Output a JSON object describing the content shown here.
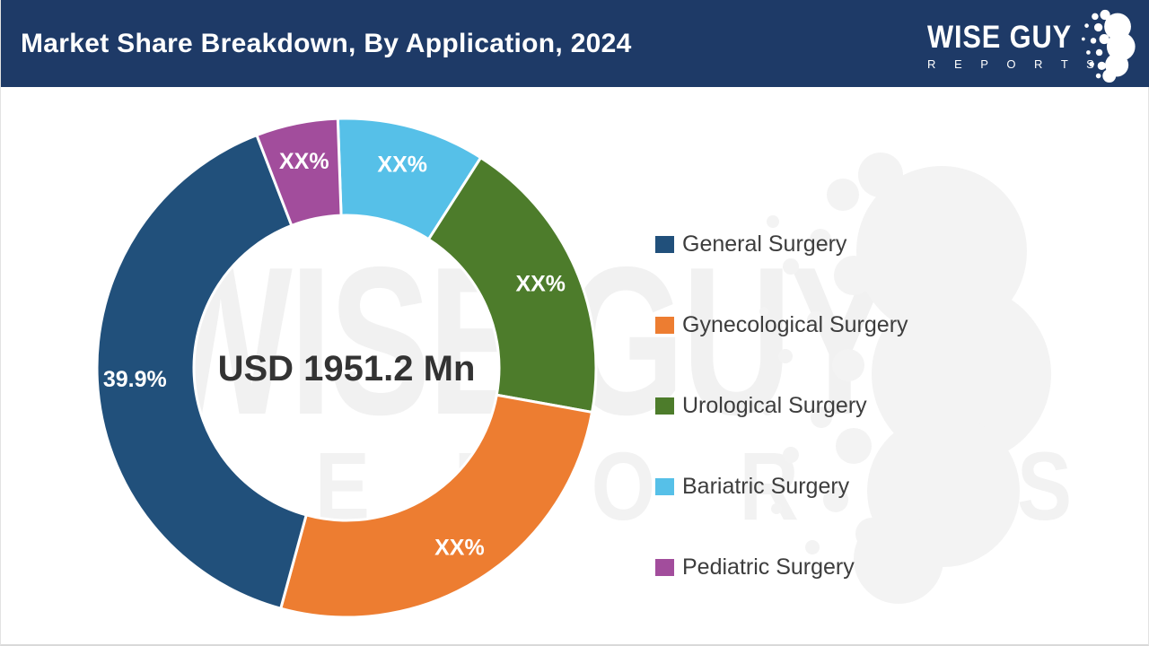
{
  "header": {
    "title": "Market Share Breakdown, By Application, 2024",
    "bg_color": "#1e3a67",
    "logo": {
      "line1": "WISE GUY",
      "line2": "R E P O R T S",
      "face_icon": "dotted-head-profile"
    }
  },
  "watermark": {
    "line1": "WISE GUY",
    "line2": "R E P O R T S",
    "face_icon": "dotted-head-profile",
    "color": "#f1f1f1"
  },
  "chart_data": {
    "type": "pie",
    "subtype": "donut",
    "title": "Market Share Breakdown, By Application, 2024",
    "center_label": "USD 1951.2 Mn",
    "unit": "percent of market share",
    "start_angle_deg": -2,
    "clockwise": true,
    "draw_order": [
      "Bariatric Surgery",
      "Urological Surgery",
      "Gynecological Surgery",
      "General Surgery",
      "Pediatric Surgery"
    ],
    "slices": [
      {
        "name": "General Surgery",
        "value": 39.9,
        "label": "39.9%",
        "color": "#21507b"
      },
      {
        "name": "Gynecological Surgery",
        "value": 26.4,
        "label": "XX%",
        "color": "#ed7d31"
      },
      {
        "name": "Urological Surgery",
        "value": 18.8,
        "label": "XX%",
        "color": "#4d7c2b"
      },
      {
        "name": "Bariatric Surgery",
        "value": 9.6,
        "label": "XX%",
        "color": "#56c0e8"
      },
      {
        "name": "Pediatric Surgery",
        "value": 5.3,
        "label": "XX%",
        "color": "#a24d9c"
      }
    ],
    "legend_position": "right",
    "label_color": "#ffffff",
    "slice_gap_color": "#ffffff"
  }
}
